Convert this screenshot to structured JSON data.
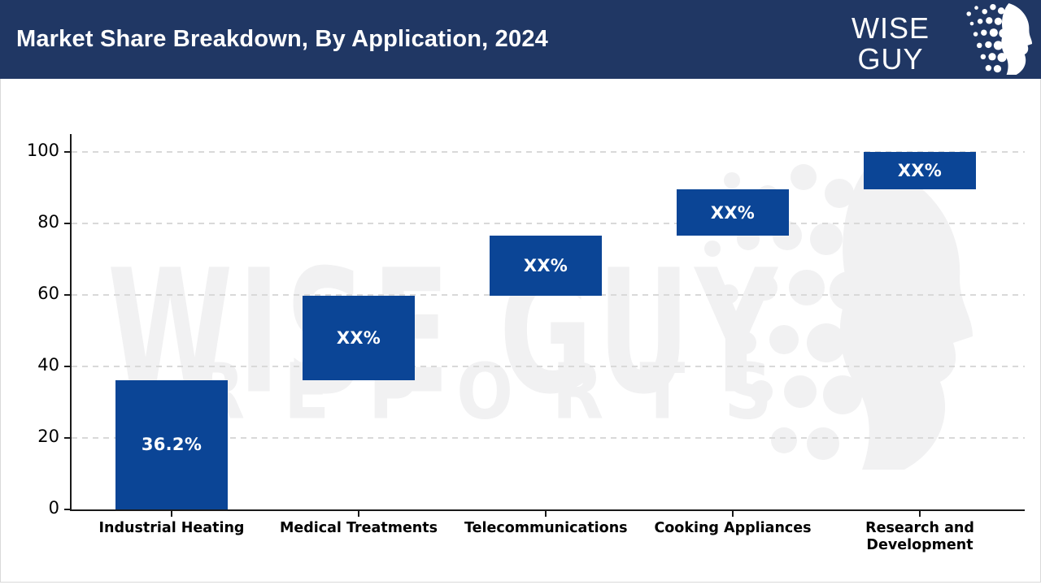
{
  "header": {
    "title": "Market Share Breakdown, By Application, 2024",
    "bg_color": "#203764",
    "logo": {
      "line1": "WISE GUY",
      "line2": "REPORTS"
    }
  },
  "watermark": {
    "line1": "WISE GUY",
    "line2": "REPORTS"
  },
  "colors": {
    "bar": "#0b4596",
    "axis": "#1a1a1a",
    "gridline": "#d9d9d9",
    "watermark": "#f1f1f2",
    "header_bg": "#203764",
    "bar_label": "#ffffff"
  },
  "chart_data": {
    "type": "bar",
    "subtype": "waterfall",
    "title": "Market Share Breakdown, By Application, 2024",
    "categories": [
      "Industrial Heating",
      "Medical Treatments",
      "Telecommunications",
      "Cooking Appliances",
      "Research and Development"
    ],
    "segments": [
      {
        "category": "Industrial Heating",
        "start": 0,
        "end": 36.2,
        "label": "36.2%"
      },
      {
        "category": "Medical Treatments",
        "start": 36.2,
        "end": 59.8,
        "label": "XX%"
      },
      {
        "category": "Telecommunications",
        "start": 59.8,
        "end": 76.6,
        "label": "XX%"
      },
      {
        "category": "Cooking Appliances",
        "start": 76.6,
        "end": 89.5,
        "label": "XX%"
      },
      {
        "category": "Research and Development",
        "start": 89.5,
        "end": 100,
        "label": "XX%"
      }
    ],
    "y_ticks": [
      0,
      20,
      40,
      60,
      80,
      100
    ],
    "ylim": [
      0,
      105
    ],
    "xlabel": "",
    "ylabel": "",
    "grid": "horizontal-dashed",
    "legend_position": "none",
    "bar_color": "#0b4596"
  }
}
